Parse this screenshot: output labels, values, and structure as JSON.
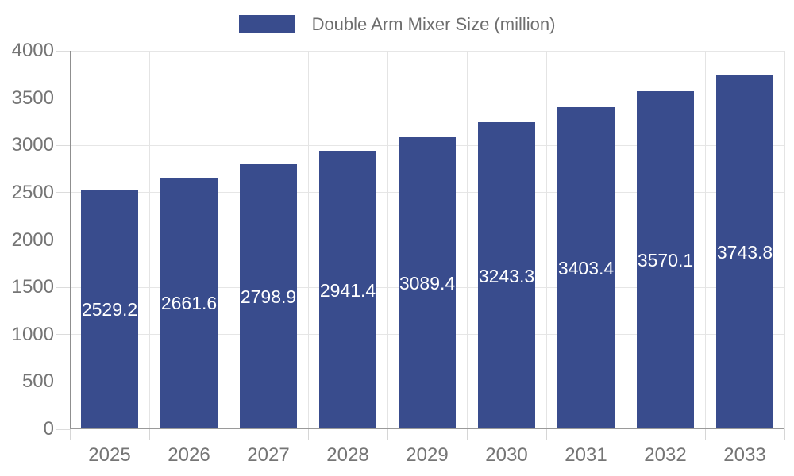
{
  "legend": {
    "label": "Double Arm Mixer Size (million)"
  },
  "chart_data": {
    "type": "bar",
    "title": "Double Arm Mixer Size (million)",
    "categories": [
      "2025",
      "2026",
      "2027",
      "2028",
      "2029",
      "2030",
      "2031",
      "2032",
      "2033"
    ],
    "values": [
      2529.2,
      2661.6,
      2798.9,
      2941.4,
      3089.4,
      3243.3,
      3403.4,
      3570.1,
      3743.8
    ],
    "value_labels": [
      "2529.2",
      "2661.6",
      "2798.9",
      "2941.4",
      "3089.4",
      "3243.3",
      "3403.4",
      "3570.1",
      "3743.8"
    ],
    "xlabel": "",
    "ylabel": "",
    "ylim": [
      0,
      4000
    ],
    "yticks": [
      0,
      500,
      1000,
      1500,
      2000,
      2500,
      3000,
      3500,
      4000
    ],
    "grid": true,
    "legend_position": "top-center",
    "colors": {
      "bar": "#394c8d",
      "value_label": "#ffffff",
      "axis_text": "#757575",
      "gridline": "#e6e6e6",
      "axis_line": "#9a9a9a",
      "legend_text": "#6e6e6e"
    }
  }
}
